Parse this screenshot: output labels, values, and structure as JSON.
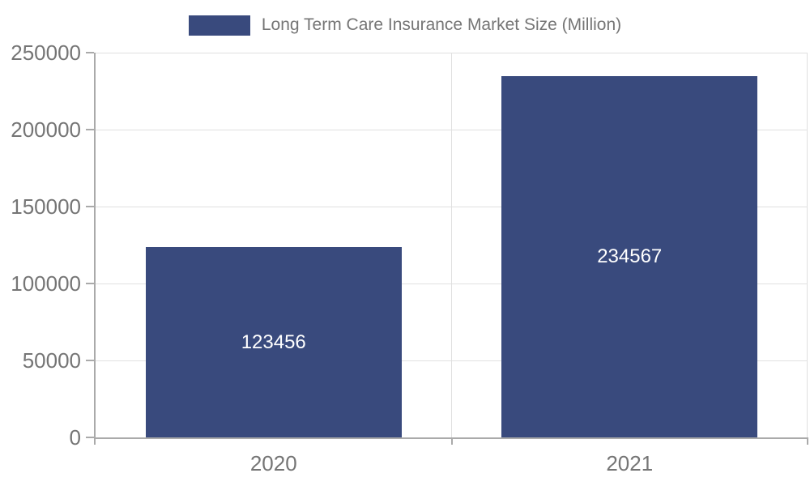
{
  "chart_data": {
    "type": "bar",
    "categories": [
      "2020",
      "2021"
    ],
    "series": [
      {
        "name": "Long Term Care Insurance Market Size (Million)",
        "values": [
          123456,
          234567
        ],
        "color": "#394A7D"
      }
    ],
    "data_labels": [
      "123456",
      "234567"
    ],
    "ylim": [
      0,
      250000
    ],
    "yticks": [
      0,
      50000,
      100000,
      150000,
      200000,
      250000
    ],
    "ytick_labels": [
      "0",
      "50000",
      "100000",
      "150000",
      "200000",
      "250000"
    ],
    "xlabel": "",
    "ylabel": "",
    "legend_position": "top",
    "grid": true,
    "bar_width_fraction": 0.72
  },
  "colors": {
    "background": "#FFFFFF",
    "bar": "#394A7D",
    "bar_label": "#FFFFFF",
    "text": "#757575",
    "grid": "#E0E0E0",
    "axis": "#AAAAAA"
  }
}
